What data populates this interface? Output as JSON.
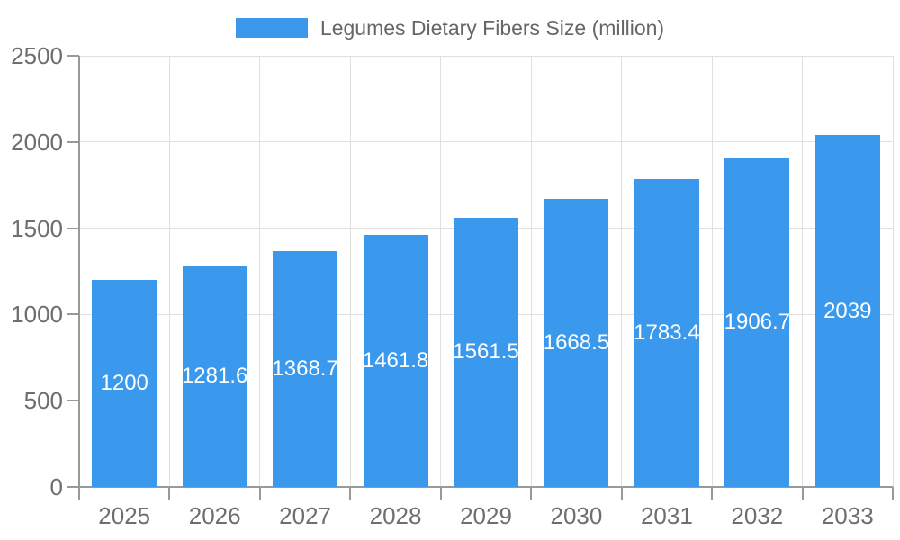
{
  "legend": {
    "label": "Legumes Dietary Fibers Size (million)"
  },
  "chart_data": {
    "type": "bar",
    "title": "Legumes Dietary Fibers Size (million)",
    "series_name": "Legumes Dietary Fibers Size (million)",
    "categories": [
      "2025",
      "2026",
      "2027",
      "2028",
      "2029",
      "2030",
      "2031",
      "2032",
      "2033"
    ],
    "values": [
      1200,
      1281.6,
      1368.7,
      1461.8,
      1561.5,
      1668.5,
      1783.4,
      1906.7,
      2039
    ],
    "value_labels": [
      "1200",
      "1281.6",
      "1368.7",
      "1461.8",
      "1561.5",
      "1668.5",
      "1783.4",
      "1906.7",
      "2039"
    ],
    "xlabel": "",
    "ylabel": "",
    "ylim": [
      0,
      2500
    ],
    "yticks": [
      0,
      500,
      1000,
      1500,
      2000,
      2500
    ],
    "grid": true,
    "legend_position": "top",
    "value_label_position": "inside-center",
    "colors": {
      "bar": "#3A99EC",
      "grid": "#E0E0E0",
      "axis": "#999999",
      "tick_label": "#6E6E6E",
      "value_label": "#FFFFFF",
      "legend_text": "#666666"
    }
  }
}
